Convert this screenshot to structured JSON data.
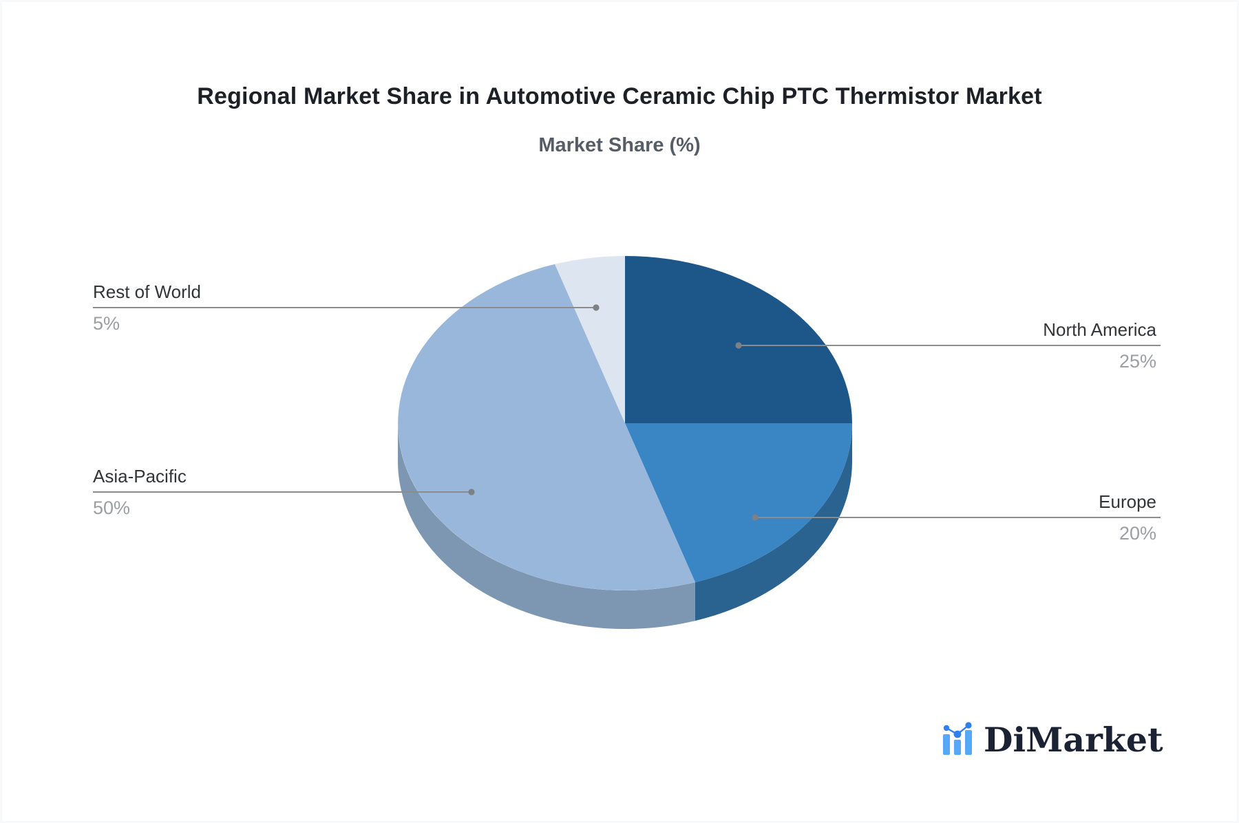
{
  "header": {
    "title": "Regional Market Share in Automotive Ceramic Chip PTC Thermistor Market",
    "subtitle": "Market Share (%)"
  },
  "chart_data": {
    "type": "pie",
    "style": "3d",
    "title": "Regional Market Share in Automotive Ceramic Chip PTC Thermistor Market",
    "subtitle": "Market Share (%)",
    "unit": "%",
    "start_angle_deg": 0,
    "direction": "clockwise",
    "legend": "none",
    "label_style": "callout-lines",
    "categories": [
      "North America",
      "Europe",
      "Asia-Pacific",
      "Rest of World"
    ],
    "values": [
      25,
      20,
      50,
      5
    ]
  },
  "slices": [
    {
      "label": "North America",
      "value": 25,
      "pct_label": "25%",
      "color": "#1d578a",
      "side_color": "#174a78",
      "label_side": "right"
    },
    {
      "label": "Europe",
      "value": 20,
      "pct_label": "20%",
      "color": "#3a86c5",
      "side_color": "#2a6390",
      "label_side": "right"
    },
    {
      "label": "Asia-Pacific",
      "value": 50,
      "pct_label": "50%",
      "color": "#98b7da",
      "side_color": "#7d97b3",
      "label_side": "left"
    },
    {
      "label": "Rest of World",
      "value": 5,
      "pct_label": "5%",
      "color": "#dde5f1",
      "side_color": "#b9c6d8",
      "label_side": "left"
    }
  ],
  "brand": {
    "name": "DiMarket",
    "icon": "bar-line-chart-icon",
    "text_color": "#1b2234",
    "bar_color": "#55a7f7",
    "dot_color": "#2e80ee"
  },
  "colors": {
    "background": "#ffffff",
    "title": "#1d2025",
    "subtitle": "#565d66",
    "label_text": "#323538",
    "pct_text": "#9b9fa3",
    "connector": "#8c8c8c",
    "connector_dot": "#7d8084"
  }
}
